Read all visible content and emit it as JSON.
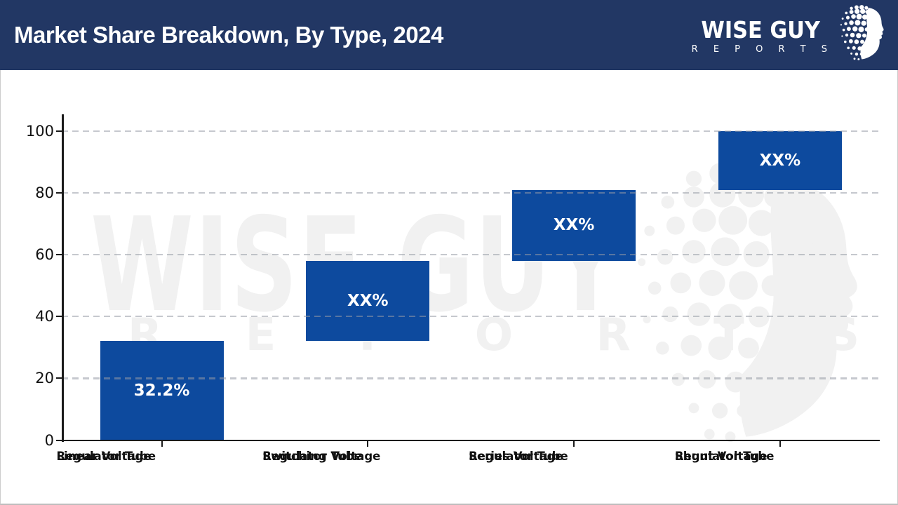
{
  "header": {
    "title": "Market Share Breakdown, By Type, 2024",
    "brand": {
      "name": "WISE GUY",
      "sub": "R E P O R T S"
    }
  },
  "watermark": {
    "line1": "WISE GUY",
    "line2": "R E P O R T S"
  },
  "colors": {
    "header_bg": "#223764",
    "bar": "#0d4a9e",
    "axis": "#1a1a1a",
    "grid_dash": "rgba(150,155,165,0.55)",
    "watermark": "#f1f1f1",
    "tick_text": "#111111"
  },
  "chart_data": {
    "type": "bar",
    "variant": "stepped-waterfall",
    "title": "Market Share Breakdown, By Type, 2024",
    "categories": [
      {
        "lines": [
          "Linear Voltage",
          "Regulator Tube"
        ]
      },
      {
        "lines": [
          "Switching Voltage",
          "Regulator Tube"
        ]
      },
      {
        "lines": [
          "Series Voltage",
          "Regulator Tube"
        ]
      },
      {
        "lines": [
          "Shunt Voltage",
          "Regulator Tube"
        ]
      }
    ],
    "segments": [
      {
        "category": "Linear Voltage Regulator Tube",
        "start": 0,
        "end": 32.2,
        "label": "32.2%"
      },
      {
        "category": "Switching Voltage Regulator Tube",
        "start": 32.2,
        "end": 58,
        "label": "XX%"
      },
      {
        "category": "Series Voltage Regulator Tube",
        "start": 58,
        "end": 81,
        "label": "XX%"
      },
      {
        "category": "Shunt Voltage Regulator Tube",
        "start": 81,
        "end": 100,
        "label": "XX%"
      }
    ],
    "yticks": [
      0,
      20,
      40,
      60,
      80,
      100
    ],
    "ylim": [
      0,
      105
    ],
    "xlabel": "",
    "ylabel": "",
    "grid": "horizontal-dashed-over-bars",
    "legend": "none",
    "bar_label_color": "#ffffff"
  }
}
